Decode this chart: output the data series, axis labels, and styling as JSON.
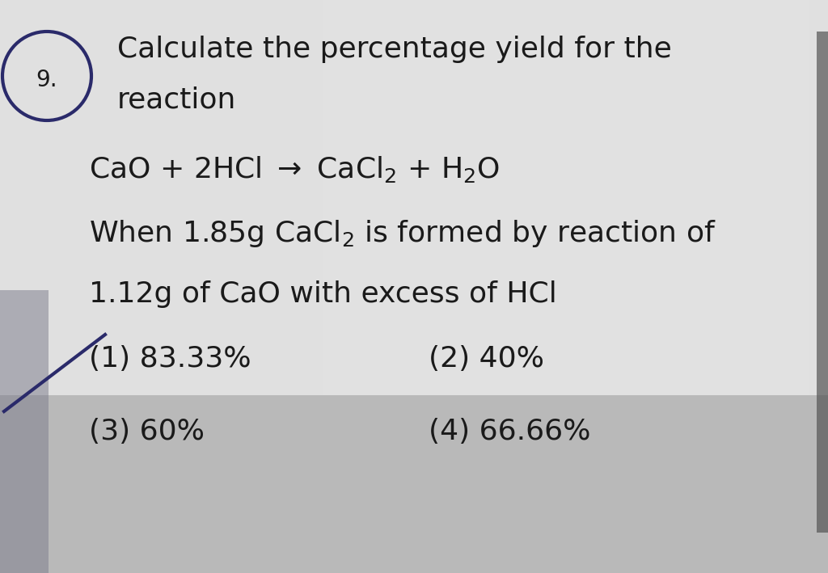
{
  "bg_main": "#e8e8e8",
  "bg_top_right": "#f5f5f5",
  "bg_bottom_shadow": "#b0b0b0",
  "text_color": "#1a1a1a",
  "circle_color": "#2a2a6a",
  "line_color": "#2a2a6a",
  "question_number": "9.",
  "line1": "Calculate the percentage yield for the",
  "line2": "reaction",
  "equation": "CaO + 2HCl $\\rightarrow$ CaCl$_2$ + H$_2$O",
  "condition_line1": "When 1.85g CaCl$_2$ is formed by reaction of",
  "condition_line2": "1.12g of CaO with excess of HCl",
  "option1": "(1) 83.33%",
  "option2": "(2) 40%",
  "option3": "(3) 60%",
  "option4": "(4) 66.66%",
  "font_size_main": 26,
  "font_size_eq": 26,
  "font_size_options": 26,
  "font_size_circle": 20
}
